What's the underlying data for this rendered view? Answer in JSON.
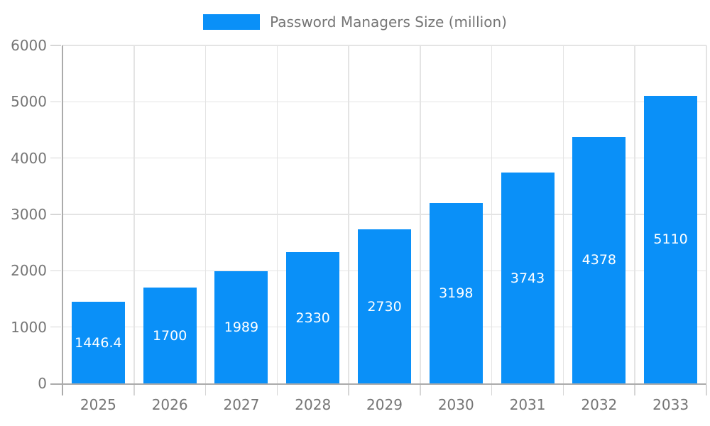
{
  "legend": {
    "label": "Password Managers Size (million)",
    "swatch_color": "#0a90f8",
    "text_color": "#757575"
  },
  "chart_data": {
    "type": "bar",
    "title": "Password Managers Size (million)",
    "categories": [
      "2025",
      "2026",
      "2027",
      "2028",
      "2029",
      "2030",
      "2031",
      "2032",
      "2033"
    ],
    "values": [
      1446.4,
      1700,
      1989,
      2330,
      2730,
      3198,
      3743,
      4378,
      5110
    ],
    "bar_labels": [
      "1446.4",
      "1700",
      "1989",
      "2330",
      "2730",
      "3198",
      "3743",
      "4378",
      "5110"
    ],
    "xlabel": "",
    "ylabel": "",
    "ylim": [
      0,
      6000
    ],
    "yticks": [
      0,
      1000,
      2000,
      3000,
      4000,
      5000,
      6000
    ],
    "grid": true,
    "grid_offset_boundaries": true,
    "legend_position": "top-center",
    "value_labels_position": "center-inside",
    "colors": {
      "bar": "#0a90f8",
      "bar_label": "#ffffff",
      "axis_text": "#757575",
      "grid_line": "#e4e4e4",
      "tick_mark": "#d6d6d6",
      "axis_line": "#ababab"
    }
  }
}
